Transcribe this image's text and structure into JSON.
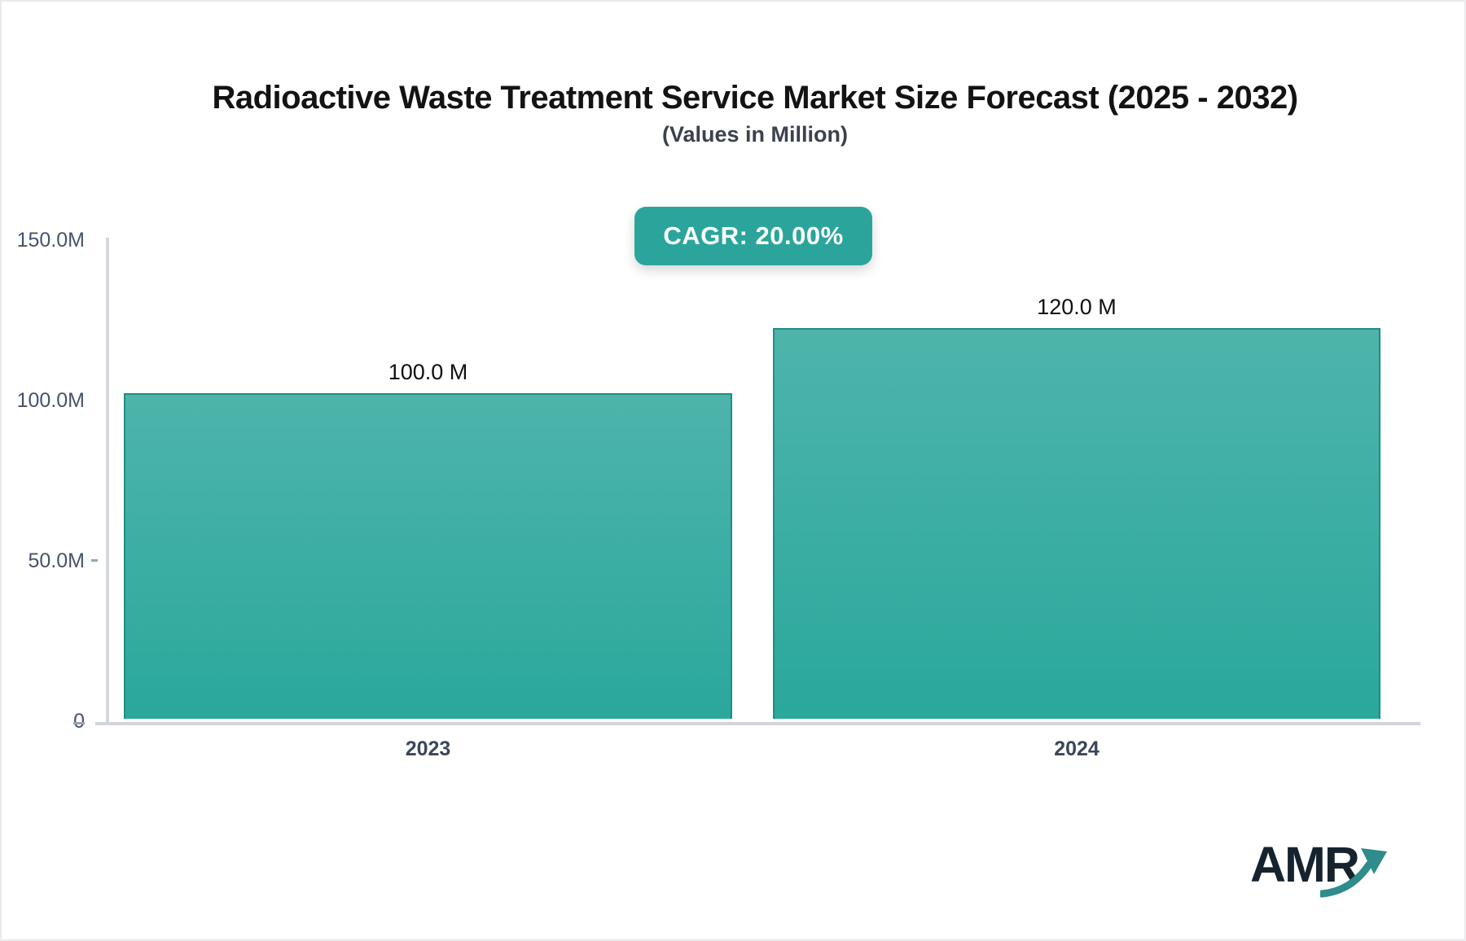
{
  "page": {
    "logo_text": "AMR"
  },
  "chart_data": {
    "type": "bar",
    "title": "Radioactive Waste Treatment Service Market Size Forecast (2025 - 2032)",
    "subtitle": "(Values in Million)",
    "annotation": "CAGR: 20.00%",
    "categories": [
      "2023",
      "2024"
    ],
    "values": [
      100.0,
      120.0
    ],
    "value_labels": [
      "100.0 M",
      "120.0 M"
    ],
    "unit": "Million",
    "ylim": [
      0,
      150
    ],
    "ytick_labels": [
      "150.0M",
      "100.0M",
      "50.0M",
      "0"
    ],
    "grid": false,
    "legend": false,
    "colors": {
      "bar_top": "#4eb4ab",
      "bar_bottom": "#2aa89b",
      "bar_border": "#1f8e85",
      "badge_bg": "#2ba59b",
      "axis": "#d2d6db",
      "logo_dark": "#15232e",
      "logo_arrow": "#2e8c8a"
    }
  }
}
